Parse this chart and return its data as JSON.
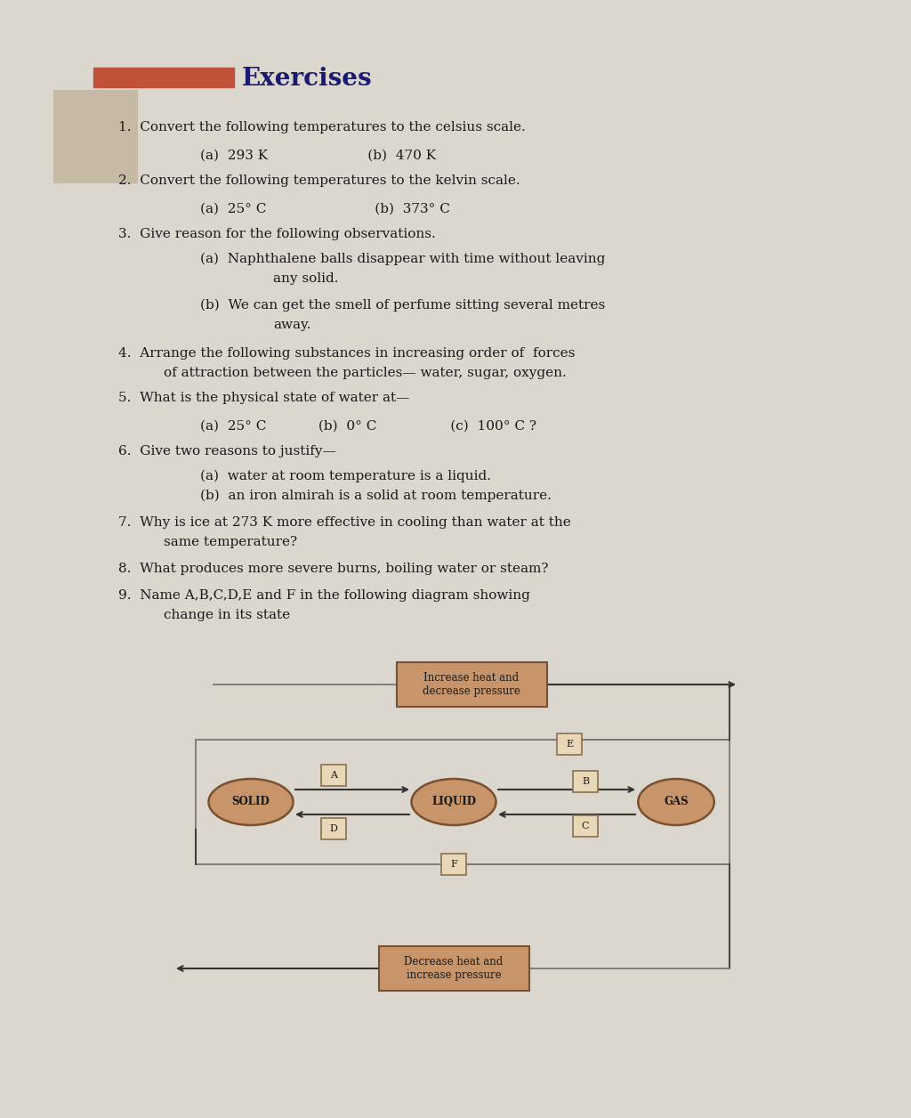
{
  "page_background": "#dbd7ce",
  "content_background": "#e8e4dc",
  "title": "Exercises",
  "title_color": "#1a1a6e",
  "title_fontsize": 20,
  "red_bar_color": "#c0523a",
  "text_color": "#1a1a1a",
  "fontsize_main": 11,
  "questions": [
    {
      "indent": 0.13,
      "text": "1.  Convert the following temperatures to the celsius scale."
    },
    {
      "indent": 0.22,
      "text": "(a)  293 K                       (b)  470 K"
    },
    {
      "indent": 0.13,
      "text": "2.  Convert the following temperatures to the kelvin scale."
    },
    {
      "indent": 0.22,
      "text": "(a)  25° C                         (b)  373° C"
    },
    {
      "indent": 0.13,
      "text": "3.  Give reason for the following observations."
    },
    {
      "indent": 0.22,
      "text": "(a)  Naphthalene balls disappear with time without leaving"
    },
    {
      "indent": 0.3,
      "text": "any solid."
    },
    {
      "indent": 0.22,
      "text": "(b)  We can get the smell of perfume sitting several metres"
    },
    {
      "indent": 0.3,
      "text": "away."
    },
    {
      "indent": 0.13,
      "text": "4.  Arrange the following substances in increasing order of  forces"
    },
    {
      "indent": 0.18,
      "text": "of attraction between the particles— water, sugar, oxygen."
    },
    {
      "indent": 0.13,
      "text": "5.  What is the physical state of water at—"
    },
    {
      "indent": 0.22,
      "text": "(a)  25° C            (b)  0° C                 (c)  100° C ?"
    },
    {
      "indent": 0.13,
      "text": "6.  Give two reasons to justify—"
    },
    {
      "indent": 0.22,
      "text": "(a)  water at room temperature is a liquid."
    },
    {
      "indent": 0.22,
      "text": "(b)  an iron almirah is a solid at room temperature."
    },
    {
      "indent": 0.13,
      "text": "7.  Why is ice at 273 K more effective in cooling than water at the"
    },
    {
      "indent": 0.18,
      "text": "same temperature?"
    },
    {
      "indent": 0.13,
      "text": "8.  What produces more severe burns, boiling water or steam?"
    },
    {
      "indent": 0.13,
      "text": "9.  Name A,B,C,D,E and F in the following diagram showing"
    },
    {
      "indent": 0.18,
      "text": "change in its state"
    }
  ],
  "diagram": {
    "solid_label": "SOLID",
    "liquid_label": "LIQUID",
    "gas_label": "GAS",
    "top_box_text": "Increase heat and\ndecrease pressure",
    "bottom_box_text": "Decrease heat and\nincrease pressure",
    "nodes": [
      "A",
      "B",
      "C",
      "D",
      "E",
      "F"
    ],
    "oval_color": "#c8956a",
    "oval_edge_color": "#7a5030",
    "box_color": "#c8956a",
    "box_edge_color": "#7a5030",
    "node_box_color": "#e8d8b8",
    "node_box_edge": "#8b7050",
    "rect_edge_color": "#777777",
    "arrow_color": "#333333"
  }
}
